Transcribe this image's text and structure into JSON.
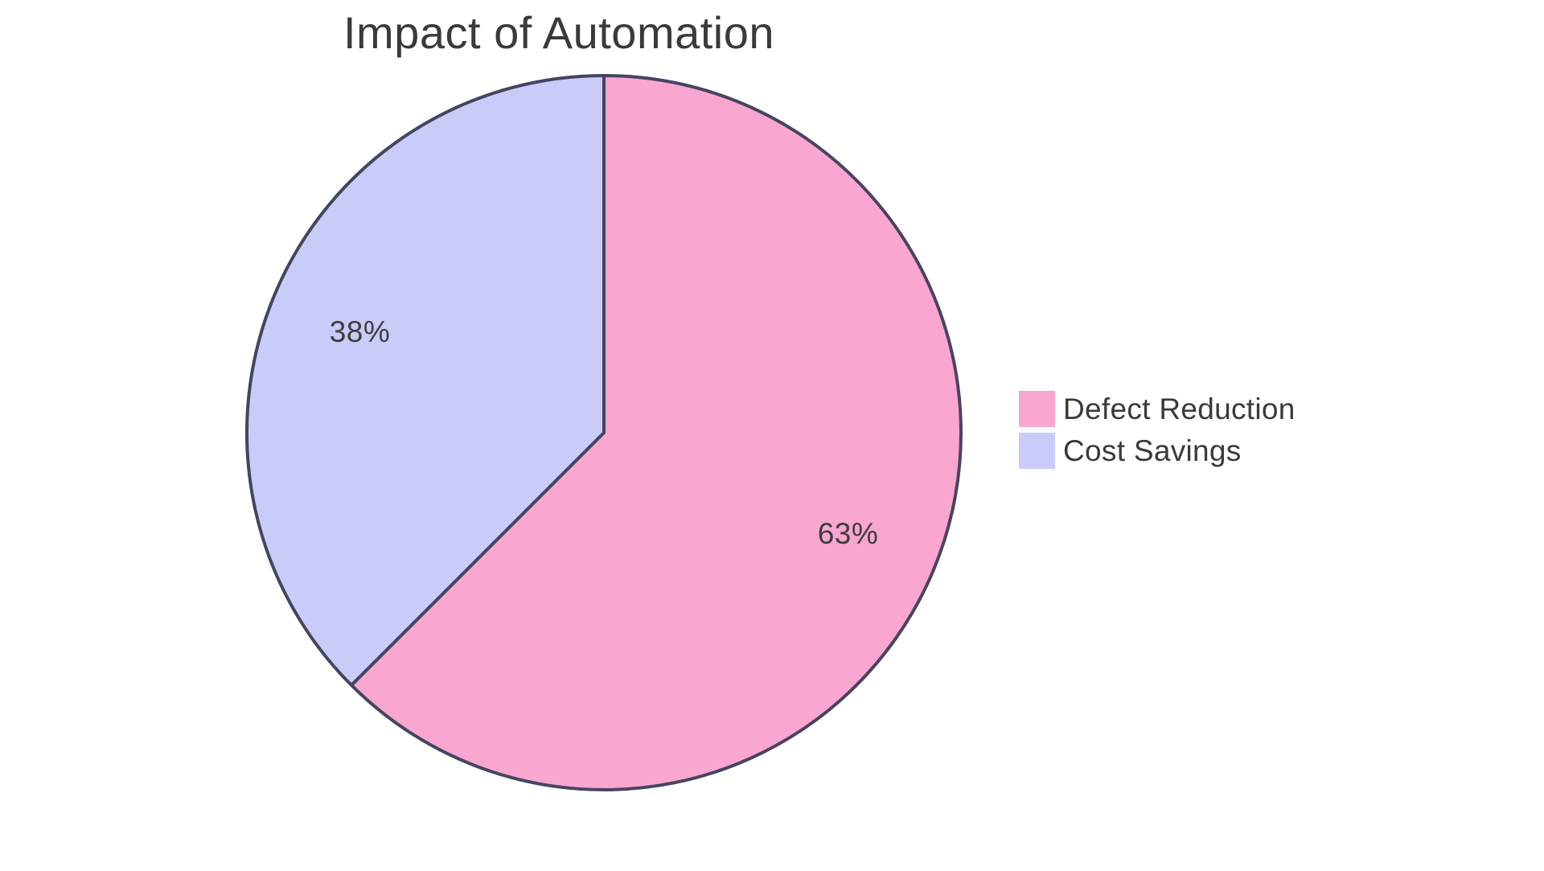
{
  "chart_data": {
    "type": "pie",
    "title": "Impact of Automation",
    "slices": [
      {
        "label": "Defect Reduction",
        "value": 62.5,
        "pct_label": "63%",
        "color": "#F9A6D0"
      },
      {
        "label": "Cost Savings",
        "value": 37.5,
        "pct_label": "38%",
        "color": "#CACBF8"
      }
    ],
    "start_angle_deg": 0,
    "direction": "clockwise",
    "stroke_color": "#454561",
    "stroke_width": 4,
    "label_color": "#3E3E3E",
    "title_color": "#3A3A3A",
    "background": "#FFFFFF",
    "legend_position": "right"
  }
}
